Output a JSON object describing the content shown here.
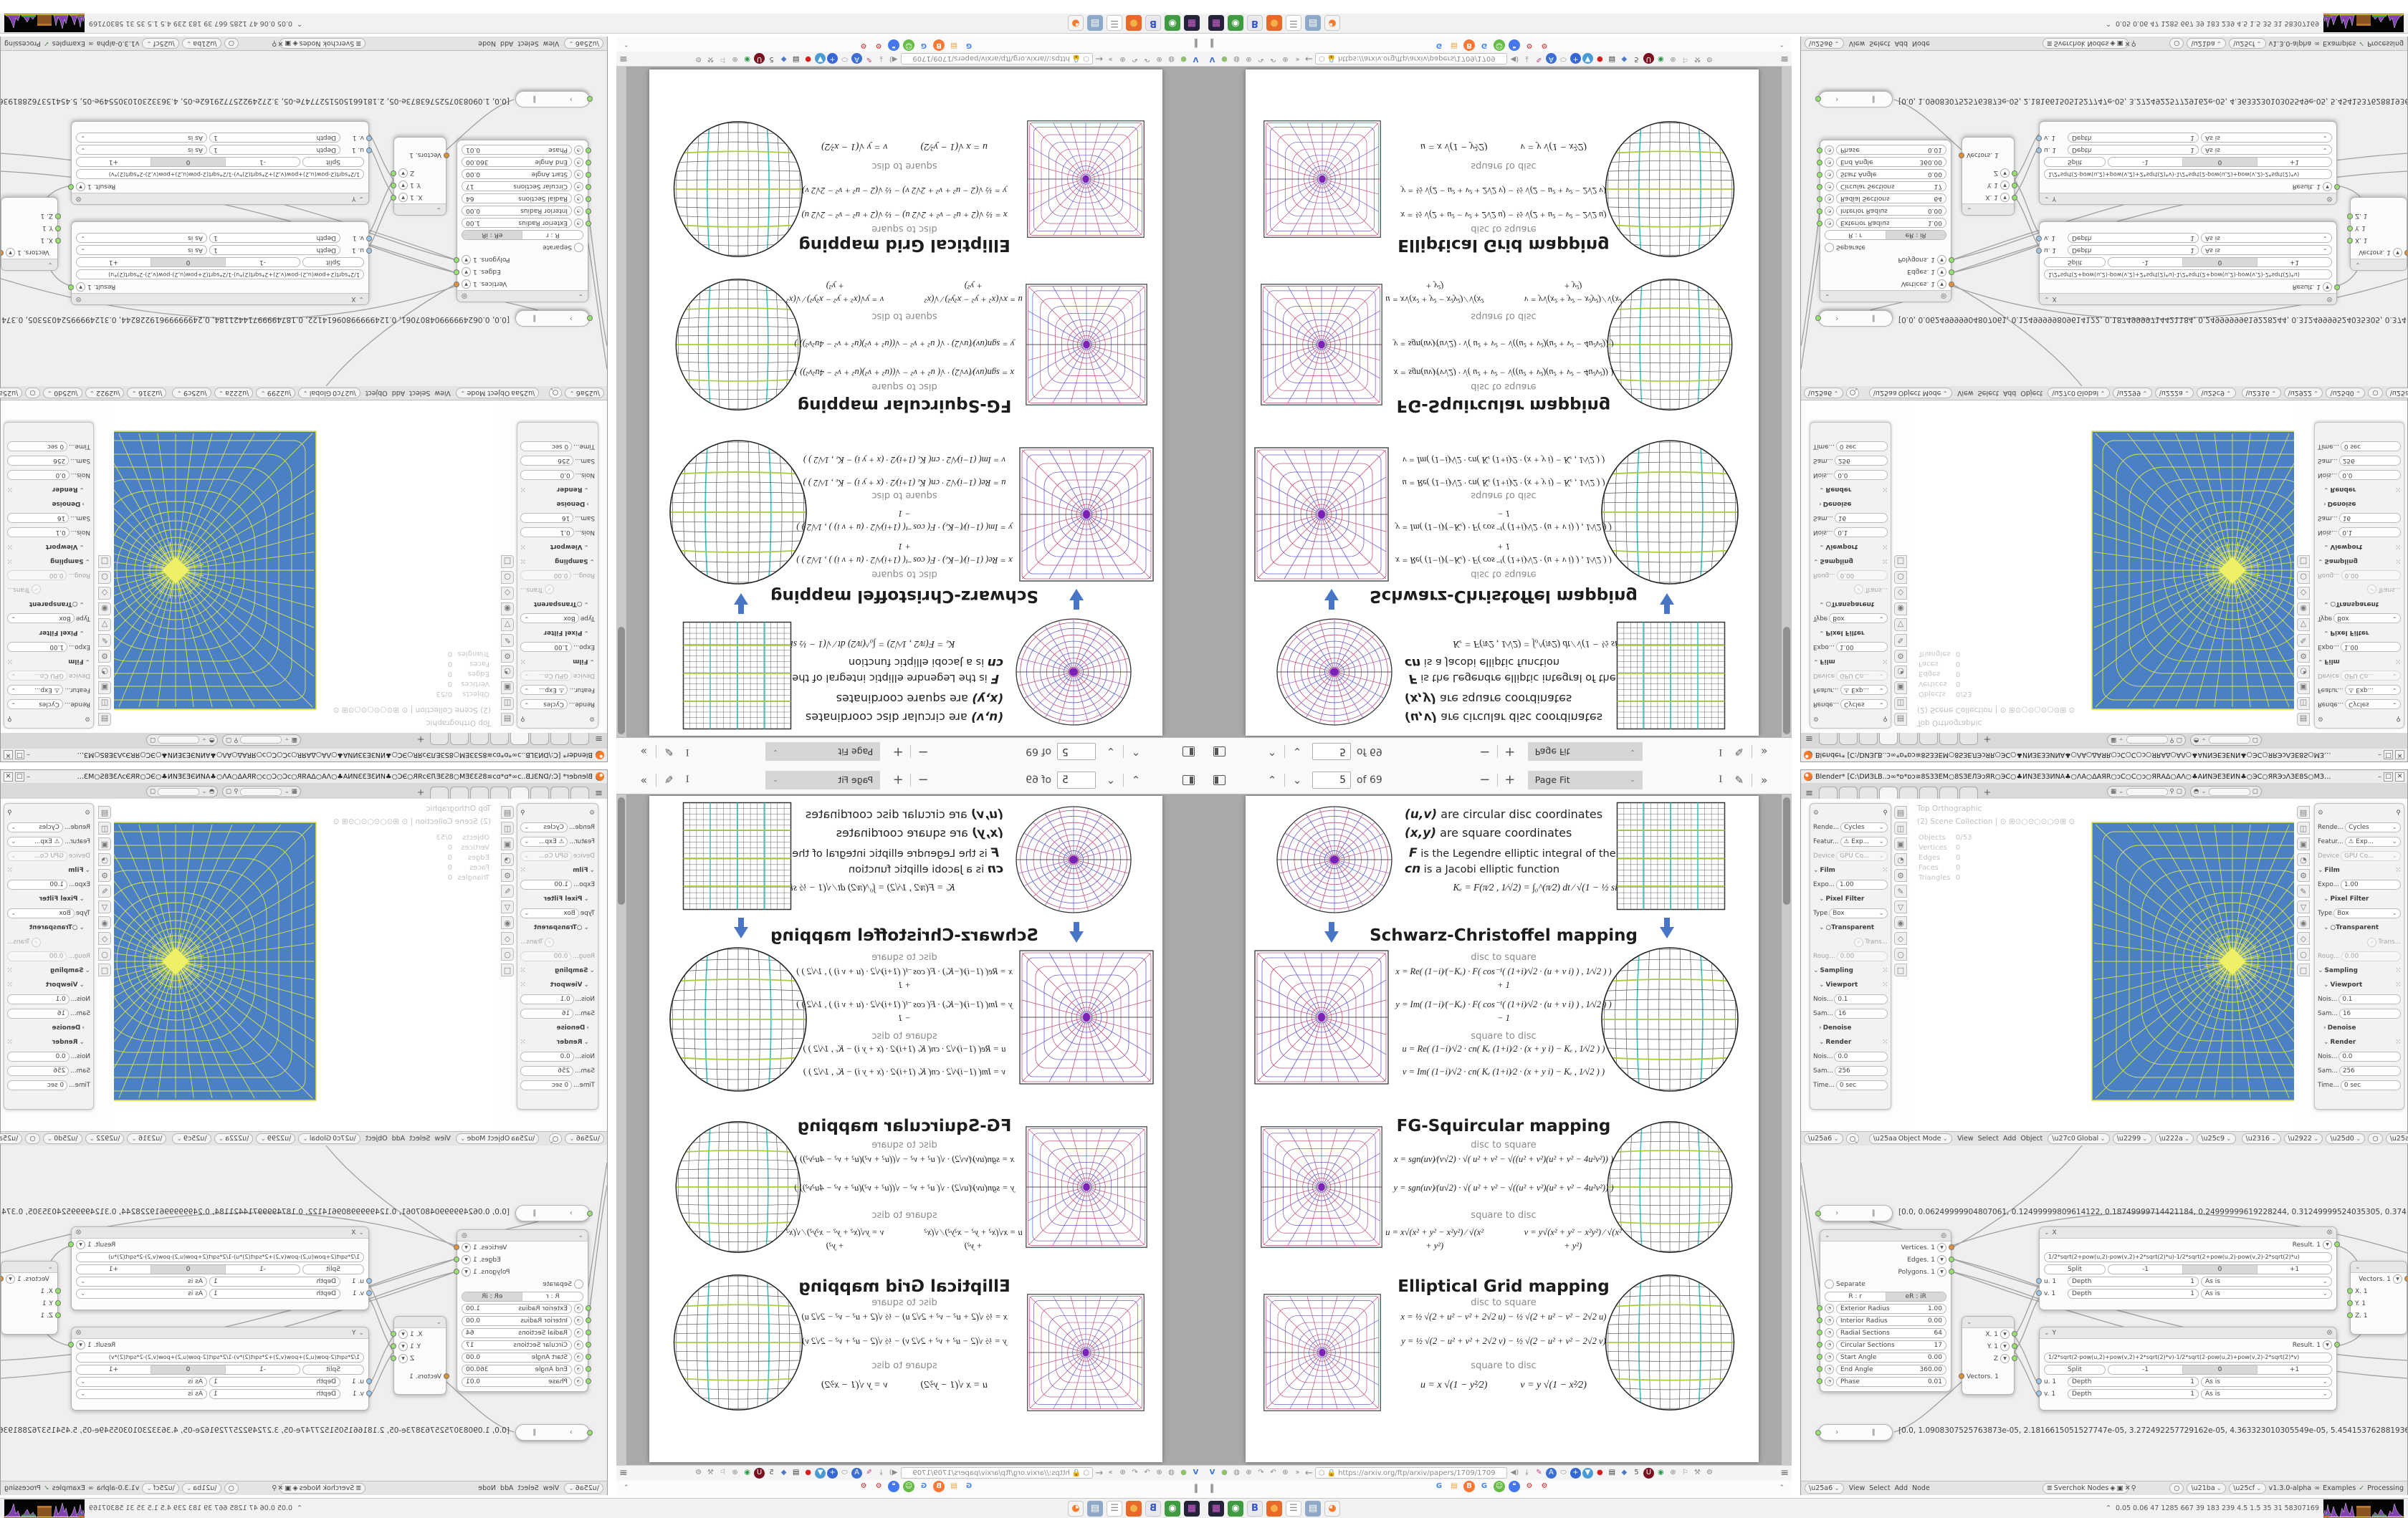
{
  "colors": {
    "arrow_blue": "#4976c4",
    "viewport_blue": "#4b80c4",
    "grid_yellow": "#d9e24f",
    "cyan_line": "#3bbfbf",
    "green_line": "#a8ca3e",
    "socket_orange": "#e09136",
    "socket_green": "#97e26d",
    "socket_blue": "#9cc6e8"
  },
  "pdf": {
    "toolbar": {
      "page_value": "5",
      "page_of": "of 69",
      "zoom_out": "−",
      "zoom_in": "+",
      "zoom_mode": "Page Fit",
      "text_tool": "I",
      "draw_tool": "✎",
      "more_tools": "»"
    },
    "page": {
      "intro": [
        {
          "lead": "(u,v)",
          "text": " are circular disc coordinates"
        },
        {
          "lead": "(x,y)",
          "text": " are square coordinates"
        },
        {
          "lead": "F",
          "text": " is the Legendre elliptic integral of the 1st kind"
        },
        {
          "lead": "cn",
          "text": " is a Jacobi elliptic function"
        }
      ],
      "ke_formula": "Kₑ =  F(π∕2 , 1∕√2) = ∫₀^(π∕2)  dt ∕ √(1 − ½ sin²t)   ≈ 1.854",
      "sections": [
        {
          "title": "Schwarz-Christoffel mapping",
          "d2s": "disc to square",
          "s2d": "square to disc",
          "f1": "x = Re( (1−i)∕(−Kₑ) · F( cos⁻¹( (1+i)∕√2 · (u + v i) ) , 1∕√2 ) ) + 1",
          "f2": "y = Im( (1−i)∕(−Kₑ) · F( cos⁻¹( (1+i)∕√2 · (u + v i) ) , 1∕√2 ) ) − 1",
          "f3": "u = Re( (1−i)∕√2 · cn( Kₑ (1+i)∕2 · (x + y i) − Kₑ , 1∕√2 ) )",
          "f4": "v = Im( (1−i)∕√2 · cn( Kₑ (1+i)∕2 · (x + y i) − Kₑ , 1∕√2 ) )"
        },
        {
          "title": "FG-Squircular mapping",
          "d2s": "disc to square",
          "s2d": "square to disc",
          "f1": "x = sgn(uv)∕(v√2) · √( u² + v² − √((u² + v²)(u² + v² − 4u²v²)) )",
          "f2": "y = sgn(uv)∕(u√2) · √( u² + v² − √((u² + v²)(u² + v² − 4u²v²)) )",
          "f3": "u = x√(x² + y² − x²y²) ∕ √(x² + y²)",
          "f4": "v = y√(x² + y² − x²y²) ∕ √(x² + y²)"
        },
        {
          "title": "Elliptical Grid mapping",
          "d2s": "disc to square",
          "s2d": "square to disc",
          "f1": "x = ½ √(2 + u² − v² + 2√2 u)  −  ½ √(2 + u² − v² − 2√2 u)",
          "f2": "y = ½ √(2 − u² + v² + 2√2 v)  −  ½ √(2 − u² + v² − 2√2 v)",
          "f3": "u = x √(1 − y²∕2)",
          "f4": "v = y √(1 − x²∕2)"
        }
      ]
    }
  },
  "browser": {
    "url": "https://arxiv.org/ftp/arxiv/papers/1709/1709",
    "left_icons": [
      {
        "g": "V",
        "c": "#3b6fd4",
        "name": "vivaldi-icon"
      },
      {
        "g": "●",
        "c": "#8fbf6f",
        "name": "green-extension-icon"
      },
      {
        "g": "◍",
        "c": "#8a8a8a",
        "name": "globe-icon"
      },
      {
        "g": "⊕",
        "c": "#8a8a8a",
        "name": "globe-plus-icon"
      },
      {
        "g": "↷",
        "c": "#8a8a8a",
        "name": "redo-icon"
      },
      {
        "g": "↶",
        "c": "#8a8a8a",
        "name": "undo-icon"
      },
      {
        "g": "⊕",
        "c": "#8a8a8a",
        "name": "globe-icon-2"
      },
      {
        "g": "»",
        "c": "#8a8a8a",
        "name": "overflow-chevron-icon"
      }
    ],
    "right_icons": [
      {
        "g": "◀)",
        "c": "#8a8a8a",
        "name": "speaker-icon"
      },
      {
        "g": "⤓",
        "c": "#8a8a8a",
        "name": "download-icon"
      },
      {
        "g": "✎",
        "c": "#c04488",
        "name": "highlighter-icon"
      },
      {
        "g": "A",
        "c": "#fff",
        "bg": "#3b6fd4",
        "name": "translate-icon"
      },
      {
        "g": "⬭",
        "c": "#8a8a8a",
        "name": "oval-icon"
      },
      {
        "g": "+",
        "c": "#fff",
        "bg": "#3468d4",
        "name": "plus-badge-icon"
      },
      {
        "g": "▼",
        "c": "#fff",
        "bg": "#4a9ad4",
        "name": "down-shield-icon"
      },
      {
        "g": "●",
        "c": "#d42020",
        "name": "red-dot-icon"
      },
      {
        "g": "▤",
        "c": "#333",
        "name": "trash-icon"
      },
      {
        "g": "◆",
        "c": "#4a78c4",
        "name": "globe-arrows-icon"
      },
      {
        "g": "5",
        "c": "#555",
        "name": "barrel-icon"
      },
      {
        "g": "U",
        "c": "#fff",
        "bg": "#7a1020",
        "name": "ud-shield-icon"
      },
      {
        "g": "◉",
        "c": "#2a9a4a",
        "name": "green-globe-icon"
      },
      {
        "g": "⊕",
        "c": "#8a8a8a",
        "name": "gray-globe-icon"
      },
      {
        "g": "⚐",
        "c": "#8a8a8a",
        "name": "share-icon"
      },
      {
        "g": "⚒",
        "c": "#8a8a8a",
        "name": "wrench-icon"
      },
      {
        "g": "⚙",
        "c": "#8a8a8a",
        "name": "gear-icon"
      }
    ],
    "bookmarks": [
      {
        "g": "G",
        "c": "#4285F4",
        "name": "google-bookmark-icon"
      },
      {
        "g": "▤",
        "c": "#e8a33d",
        "name": "stack-bookmark-icon"
      },
      {
        "g": "B",
        "c": "#fff",
        "bg": "#ff7733",
        "name": "blogger-bookmark-icon"
      },
      {
        "g": "G",
        "c": "#4285F4",
        "name": "google-bookmark-icon-2"
      },
      {
        "g": "☺",
        "c": "#fff",
        "bg": "#66bb44",
        "name": "smiley-bookmark-icon"
      },
      {
        "g": "❝",
        "c": "#fff",
        "bg": "#4477ee",
        "name": "chat-bookmark-icon"
      },
      {
        "g": "⚙",
        "c": "#cc2222",
        "name": "red-gear-bookmark-icon"
      },
      {
        "g": "⚙",
        "c": "#cc2222",
        "name": "red-gear-bookmark-icon-2"
      }
    ]
  },
  "blender": {
    "title": "Blender* [C:\\DИЗLB..ɔ∞*ɒ*ɒɔ≅8S3ЗЕМ○8SЗЕЛЭɔЯR○ЭС○♣ИNЗЕЗЗИNА♣○ΛА○ΔАЯR○ɔĆ○Ć○ɔ○ЯRАΔ○АΛ○♣АИNЭЕЗЕИN♣○ЭС○ЯRЭɔΛЗЕ8S○МЗЕ8S≅ɔ○*ɒ*ɒ...",
    "workspace_tab_count": 8,
    "props_rows": [
      {
        "t": "dd",
        "label": "Rende...",
        "value": "Cycles"
      },
      {
        "t": "dd",
        "label": "Featur...",
        "value": "⚠ Exp..."
      },
      {
        "t": "dd",
        "label": "Device",
        "value": "GPU Co...",
        "dim": true
      },
      {
        "t": "sec",
        "label": "Film",
        "dots": true
      },
      {
        "t": "field",
        "label": "Expo...",
        "value": "1.00"
      },
      {
        "t": "sec",
        "label": "Pixel Filter",
        "indent": true
      },
      {
        "t": "dd",
        "label": "Type",
        "value": "Box"
      },
      {
        "t": "sec",
        "label": "○Transparent",
        "indent": true
      },
      {
        "t": "check",
        "label": "Trans...",
        "dim": true
      },
      {
        "t": "field",
        "label": "Roug...",
        "value": "0.00",
        "dim": true
      },
      {
        "t": "sec",
        "label": "Sampling",
        "dots": true
      },
      {
        "t": "sec",
        "label": "Viewport",
        "indent": true,
        "dots": true
      },
      {
        "t": "field",
        "label": "Nois...",
        "value": "0.1"
      },
      {
        "t": "field",
        "label": "Sam...",
        "value": "16"
      },
      {
        "t": "sec",
        "label": "Denoise",
        "collapsed": true,
        "indent": true
      },
      {
        "t": "sec",
        "label": "Render",
        "indent": true,
        "dots": true
      },
      {
        "t": "field",
        "label": "Nois...",
        "value": "0.0"
      },
      {
        "t": "field",
        "label": "Sam...",
        "value": "256"
      },
      {
        "t": "field",
        "label": "Time...",
        "value": "0 sec"
      }
    ],
    "prop_tab_icons": [
      "▤",
      "◫",
      "▣",
      "◔",
      "⚙",
      "✎",
      "▽",
      "◉",
      "◇",
      "○",
      "□"
    ],
    "viewport": {
      "view_label": "Top Orthographic",
      "breadcrumb": "(2) Scene Collection | ⊙ ⊞⊙○⊙○⊙○⊙⊞ ⊙",
      "stats": [
        {
          "label": "Objects",
          "value": "0/53"
        },
        {
          "label": "Vertices",
          "value": "0"
        },
        {
          "label": "Edges",
          "value": "0"
        },
        {
          "label": "Faces",
          "value": "0"
        },
        {
          "label": "Triangles",
          "value": "0"
        }
      ]
    },
    "viewport_header": {
      "mode": "Object Mode",
      "menus": [
        "View",
        "Select",
        "Add",
        "Object"
      ],
      "orientation": "Global"
    },
    "node_editor": {
      "list_top": "[0.0, 0.06249999904807061, 0.12499999809614122, 0.18749999714421184, 0.24999999619228244, 0.31249999524035305, 0.374",
      "list_bottom": "[0.0, 1.0908307525763873e-05, 2.1816615051527747e-05, 3.272492257729162e-05, 4.363323010305549e-05, 5.454153762881936",
      "torus": {
        "outputs": [
          "Vertices. 1",
          "Edges. 1",
          "Polygons. 1"
        ],
        "separate": "Separate",
        "toggle_left": "R : r",
        "toggle_right": "eR : iR",
        "fields": [
          [
            "Exterior Radius",
            "1.00"
          ],
          [
            "Interior Radius",
            "0.00"
          ],
          [
            "Radial Sections",
            "64"
          ],
          [
            "Circular Sections",
            "17"
          ],
          [
            "Start Angle",
            "0.00"
          ],
          [
            "End Angle",
            "360.00"
          ],
          [
            "Phase",
            "0.01"
          ]
        ]
      },
      "vector_in": {
        "sockets": [
          "X. 1",
          "Y. 1",
          "Z"
        ],
        "output": "Vectors. 1"
      },
      "x_node": {
        "title": "X",
        "result": "Result. 1",
        "formula": "1/2*sqrt(2+pow(u,2)-pow(v,2)+2*sqrt(2)*u)-1/2*sqrt(2+pow(u,2)-pow(v,2)-2*sqrt(2)*u)",
        "split": "Split",
        "seg": [
          "-1",
          "0",
          "+1"
        ],
        "seg_active": "0",
        "inputs": [
          {
            "name": "u. 1",
            "depth_label": "Depth",
            "depth": "1",
            "mode": "As is"
          },
          {
            "name": "v. 1",
            "depth_label": "Depth",
            "depth": "1",
            "mode": "As is"
          }
        ]
      },
      "y_node": {
        "title": "Y",
        "result": "Result. 1",
        "formula": "1/2*sqrt(2-pow(u,2)+pow(v,2)+2*sqrt(2)*v)-1/2*sqrt(2-pow(u,2)+pow(v,2)-2*sqrt(2)*v)",
        "split": "Split",
        "seg": [
          "-1",
          "0",
          "+1"
        ],
        "seg_active": "0",
        "inputs": [
          {
            "name": "u. 1",
            "depth_label": "Depth",
            "depth": "1",
            "mode": "As is"
          },
          {
            "name": "v. 1",
            "depth_label": "Depth",
            "depth": "1",
            "mode": "As is"
          }
        ]
      },
      "vector_out": {
        "input": "Vectors. 1",
        "sockets": [
          "X. 1",
          "Y. 1",
          "Z. 1"
        ]
      }
    },
    "node_header": {
      "menus": [
        "View",
        "Select",
        "Add",
        "Node"
      ],
      "tree_name": "Sverchok Nodes",
      "version": "v1.3.0-alpha",
      "examples": "Examples",
      "processing_check": "✓",
      "processing": "Processing"
    }
  },
  "taskbar": {
    "apps": [
      {
        "g": "▦",
        "c": "#d05fd0",
        "bg": "#23243a",
        "name": "taskbar-app-terminal"
      },
      {
        "g": "◉",
        "c": "#ffffff",
        "bg": "#3f9b42",
        "name": "taskbar-app-capture"
      },
      {
        "g": "B",
        "c": "#3355cc",
        "bg": "#e8e8ee",
        "name": "taskbar-app-files"
      },
      {
        "g": "●",
        "c": "#f4b14a",
        "bg": "#e8692a",
        "name": "taskbar-app-firefox"
      },
      {
        "g": "☰",
        "c": "#8a8a8a",
        "bg": "#ffffff",
        "name": "taskbar-app-notepad"
      },
      {
        "g": "▤",
        "c": "#ffffff",
        "bg": "#8fa8c8",
        "name": "taskbar-app-window"
      },
      {
        "g": "◕",
        "c": "#f5792a",
        "bg": "#f4f4f4",
        "name": "taskbar-app-blender"
      }
    ],
    "status_glyph": "⌃",
    "status": "0.05 0.06  47  1285 667  39  183  239  4.5  1.5  35  31 58307169"
  }
}
